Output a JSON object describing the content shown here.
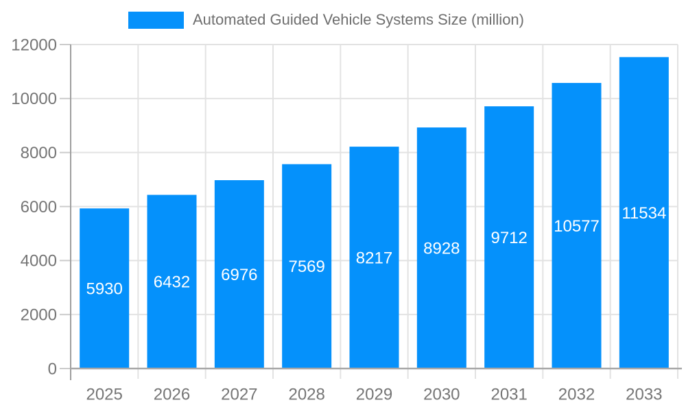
{
  "chart_data": {
    "type": "bar",
    "title": "Automated Guided Vehicle Systems Size (million)",
    "categories": [
      "2025",
      "2026",
      "2027",
      "2028",
      "2029",
      "2030",
      "2031",
      "2032",
      "2033"
    ],
    "values": [
      5930,
      6432,
      6976,
      7569,
      8217,
      8928,
      9712,
      10577,
      11534
    ],
    "xlabel": "",
    "ylabel": "",
    "ylim": [
      0,
      12000
    ],
    "yticks": [
      0,
      2000,
      4000,
      6000,
      8000,
      10000,
      12000
    ],
    "grid": true,
    "legend_position": "top",
    "colors": {
      "bar": "#0591fb",
      "value_label": "#ffffff",
      "axis_text": "#757575",
      "axis_line": "#9e9e9e",
      "baseline": "#a8a8a8",
      "grid": "#e2e2e2",
      "tick": "#cccccc",
      "background": "#ffffff"
    }
  }
}
